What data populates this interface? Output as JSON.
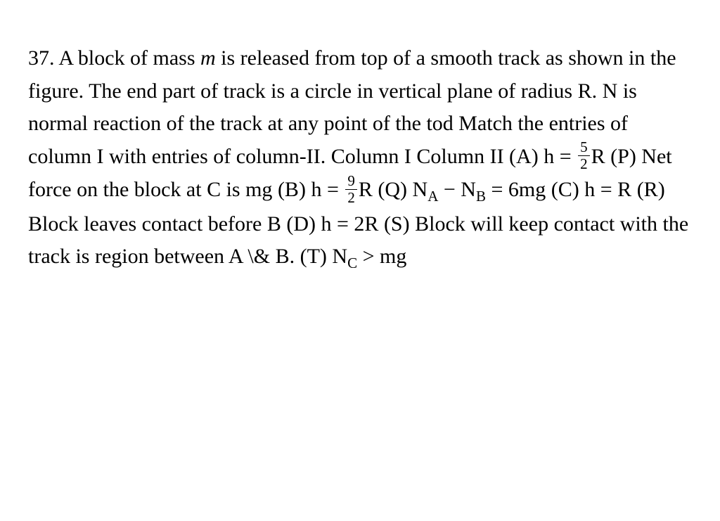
{
  "text_color": "#000000",
  "background_color": "#ffffff",
  "question_number": "37",
  "t0": ". A block of mass ",
  "var_m": "m",
  "t1": " is released from top of a smooth track as shown in the figure. The end part of track is a circle in vertical plane of radius ",
  "R": "R",
  "t2": ". ",
  "N": "N",
  "t3": " is normal reaction of the track at any point of the tod Match the entries of column I with entries of column-II. Column I Column II (A) ",
  "h": "h",
  "eq": " = ",
  "frac_5": "5",
  "frac_2": "2",
  "t4": " (P) Net force on the block at ",
  "C": "C",
  "t5": " is ",
  "mg": "mg",
  "t6": " (B) ",
  "frac_9": "9",
  "t7": " (Q) ",
  "NA": "N",
  "sub_A": "A",
  "minus": " − ",
  "NB": "N",
  "sub_B": "B",
  "eq6mg": " = 6mg",
  "t8": " (C) ",
  "t_eq_R": " = R",
  "t9": " (R) Block leaves contact before B (D) ",
  "t_eq_2R": " = 2R",
  "t10": " (S) Block will keep contact with the track is region between A \\& B. (T) ",
  "NC": "N",
  "sub_C": "C",
  "gt": " > ",
  "mg2": "mg"
}
